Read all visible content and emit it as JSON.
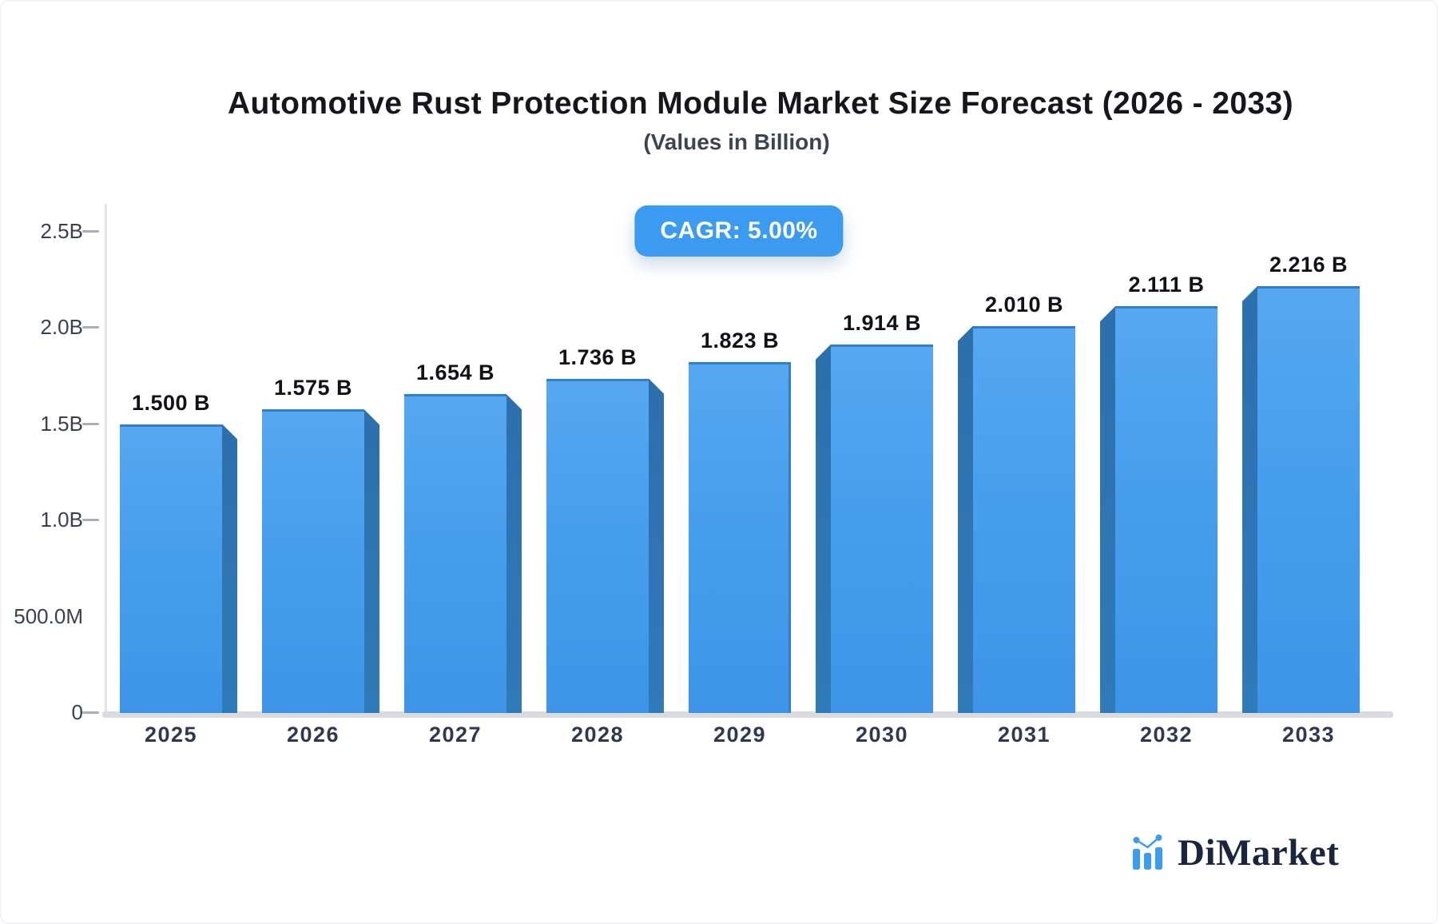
{
  "header": {
    "title": "Automotive Rust Protection Module Market Size Forecast (2026 - 2033)",
    "subtitle": "(Values in Billion)"
  },
  "chart_data": {
    "type": "bar",
    "title": "Automotive Rust Protection Module Market Size Forecast (2026 - 2033)",
    "subtitle": "(Values in Billion)",
    "annotations": {
      "cagr": "CAGR: 5.00%"
    },
    "categories": [
      "2025",
      "2026",
      "2027",
      "2028",
      "2029",
      "2030",
      "2031",
      "2032",
      "2033"
    ],
    "values": [
      1.5,
      1.575,
      1.654,
      1.736,
      1.823,
      1.914,
      2.01,
      2.111,
      2.216
    ],
    "labels": [
      "1.500 B",
      "1.575 B",
      "1.654 B",
      "1.736 B",
      "1.823 B",
      "1.914 B",
      "2.010 B",
      "2.111 B",
      "2.216 B"
    ],
    "y_ticks": [
      {
        "label": "2.5B",
        "value": 2.5,
        "dash": true
      },
      {
        "label": "2.0B",
        "value": 2.0,
        "dash": true
      },
      {
        "label": "1.5B",
        "value": 1.5,
        "dash": true
      },
      {
        "label": "1.0B",
        "value": 1.0,
        "dash": true
      },
      {
        "label": "500.0M",
        "value": 0.5,
        "dash": false
      },
      {
        "label": "0",
        "value": 0.0,
        "dash": true
      }
    ],
    "ylim": [
      0,
      2.5
    ],
    "grid": false,
    "legend": false,
    "bar_style_3d": true
  },
  "colors": {
    "accent": "#3b9bf0",
    "bar_front_top": "#57a7f0",
    "bar_front_bottom": "#3e95e8",
    "bar_side": "#2d74b4",
    "bar_edge": "#2f80cc",
    "baseline": "#d8dbe0",
    "axis_line": "#e1e4e9",
    "tick": "#a7aeb9",
    "title_text": "#15171c",
    "axis_text": "#39414f",
    "logo_text": "#1b2540"
  },
  "footer": {
    "logo_text": "DiMarket"
  }
}
